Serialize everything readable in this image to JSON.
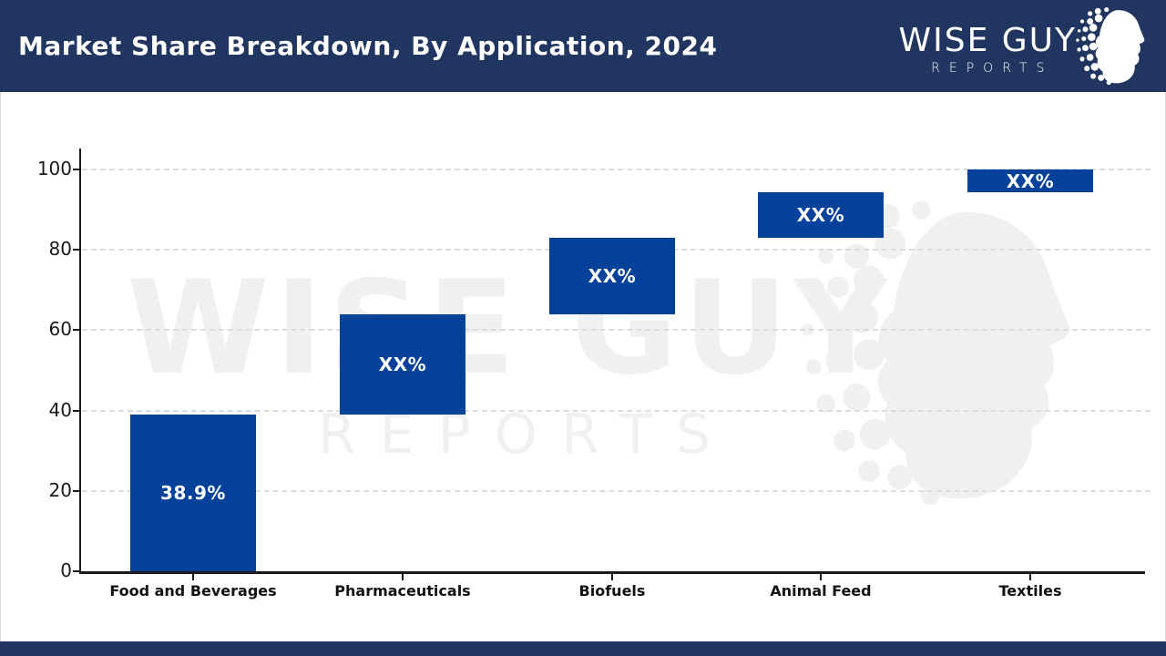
{
  "header": {
    "title": "Market Share Breakdown, By Application, 2024",
    "logo": {
      "line1": "WISE GUY",
      "line2": "REPORTS"
    }
  },
  "watermark": {
    "line1": "WISE GUY",
    "line2": "REPORTS"
  },
  "chart_data": {
    "type": "bar",
    "subtype": "waterfall",
    "title": "Market Share Breakdown, By Application, 2024",
    "categories": [
      "Food and Beverages",
      "Pharmaceuticals",
      "Biofuels",
      "Animal Feed",
      "Textiles"
    ],
    "segments": [
      {
        "category": "Food and Beverages",
        "start": 0,
        "end": 38.9,
        "label": "38.9%"
      },
      {
        "category": "Pharmaceuticals",
        "start": 38.9,
        "end": 63.9,
        "label": "XX%"
      },
      {
        "category": "Biofuels",
        "start": 63.9,
        "end": 83.1,
        "label": "XX%"
      },
      {
        "category": "Animal Feed",
        "start": 83.1,
        "end": 94.3,
        "label": "XX%"
      },
      {
        "category": "Textiles",
        "start": 94.3,
        "end": 100,
        "label": "XX%"
      }
    ],
    "yticks": [
      0,
      20,
      40,
      60,
      80,
      100
    ],
    "ylim": [
      0,
      107
    ],
    "xlabel": "",
    "ylabel": "",
    "grid": "horizontal-dashed",
    "legend": "none"
  },
  "colors": {
    "header_bg": "#20355f",
    "footer_bg": "#20355f",
    "bar": "#04419b",
    "grid": "#dcdcdc",
    "axis": "#1a1a1a",
    "watermark": "#f0f0f0"
  }
}
